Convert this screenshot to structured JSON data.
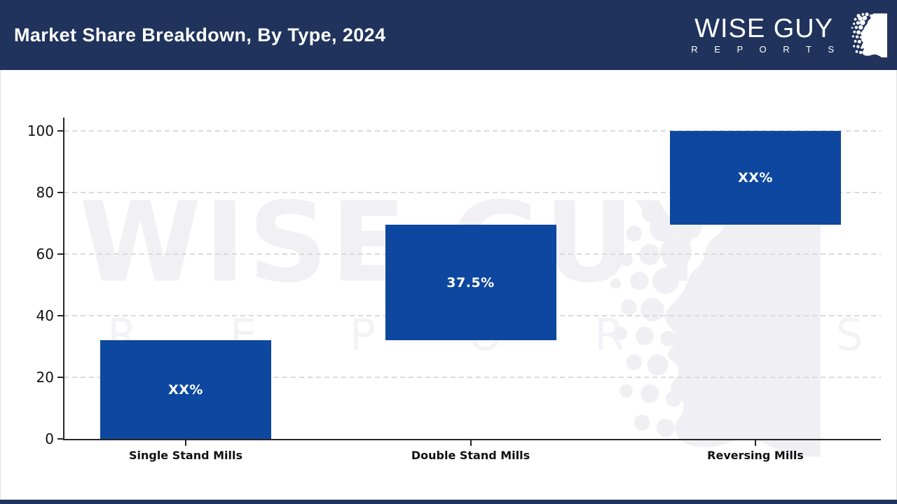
{
  "header": {
    "title": "Market Share Breakdown, By Type, 2024",
    "logo": {
      "line1": "WISE GUY",
      "line2": "REPORTS"
    }
  },
  "watermark": {
    "line1": "WISE GUY",
    "line2": "REPORTS"
  },
  "colors": {
    "header_bg": "#20335C",
    "bar": "#0D479F",
    "axis": "#262626",
    "grid": "#DADADA",
    "watermark": "#F1F1F5",
    "bar_label": "#FFFFFF"
  },
  "chart_data": {
    "type": "bar",
    "subtype": "floating-waterfall",
    "title": "Market Share Breakdown, By Type, 2024",
    "categories": [
      "Single Stand Mills",
      "Double Stand Mills",
      "Reversing Mills"
    ],
    "series": [
      {
        "values": [
          32,
          37.5,
          30.5
        ],
        "bases": [
          0,
          32,
          69.5
        ],
        "labels": [
          "XX%",
          "37.5%",
          "XX%"
        ]
      }
    ],
    "xlabel": "",
    "ylabel": "",
    "ylim": [
      0,
      100
    ],
    "yticks": [
      0,
      20,
      40,
      60,
      80,
      100
    ],
    "grid": true,
    "legend": false
  }
}
